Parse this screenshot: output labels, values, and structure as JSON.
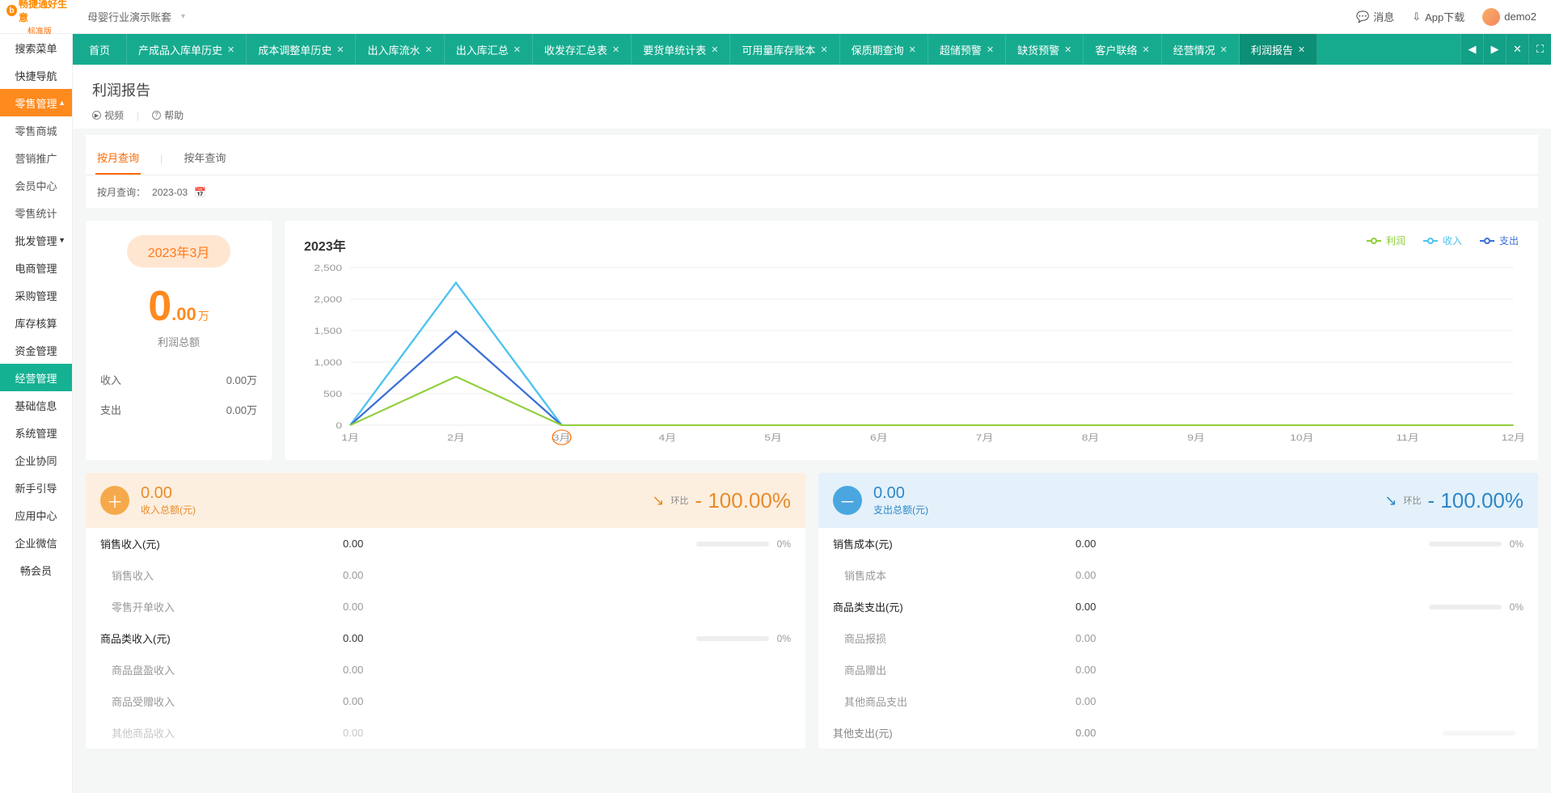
{
  "logo": {
    "main": "畅捷通好生意",
    "sub": "标准版"
  },
  "account_selector": "母婴行业演示账套",
  "topbar": {
    "msg": "消息",
    "app": "App下载",
    "user": "demo2"
  },
  "tabs": [
    {
      "label": "首页",
      "closable": false
    },
    {
      "label": "产成品入库单历史",
      "closable": true
    },
    {
      "label": "成本调整单历史",
      "closable": true
    },
    {
      "label": "出入库流水",
      "closable": true
    },
    {
      "label": "出入库汇总",
      "closable": true
    },
    {
      "label": "收发存汇总表",
      "closable": true
    },
    {
      "label": "要货单统计表",
      "closable": true
    },
    {
      "label": "可用量库存账本",
      "closable": true
    },
    {
      "label": "保质期查询",
      "closable": true
    },
    {
      "label": "超储预警",
      "closable": true
    },
    {
      "label": "缺货预警",
      "closable": true
    },
    {
      "label": "客户联络",
      "closable": true
    },
    {
      "label": "经营情况",
      "closable": true
    },
    {
      "label": "利润报告",
      "closable": true,
      "active": true
    }
  ],
  "sidebar": [
    {
      "label": "搜索菜单"
    },
    {
      "label": "快捷导航"
    },
    {
      "label": "零售管理",
      "style": "active-orange",
      "caret": "▲"
    },
    {
      "label": "零售商城",
      "sub": true
    },
    {
      "label": "营销推广",
      "sub": true
    },
    {
      "label": "会员中心",
      "sub": true
    },
    {
      "label": "零售统计",
      "sub": true
    },
    {
      "label": "批发管理",
      "caret": "▼"
    },
    {
      "label": "电商管理"
    },
    {
      "label": "采购管理"
    },
    {
      "label": "库存核算"
    },
    {
      "label": "资金管理"
    },
    {
      "label": "经营管理",
      "style": "active-teal"
    },
    {
      "label": "基础信息"
    },
    {
      "label": "系统管理"
    },
    {
      "label": "企业协同"
    },
    {
      "label": "新手引导"
    },
    {
      "label": "应用中心"
    },
    {
      "label": "企业微信"
    },
    {
      "label": "畅会员"
    }
  ],
  "page": {
    "title": "利润报告",
    "video": "视频",
    "help": "帮助"
  },
  "query": {
    "tab_month": "按月查询",
    "tab_year": "按年查询",
    "label": "按月查询：",
    "value": "2023-03"
  },
  "summary": {
    "period": "2023年3月",
    "profit_int": "0",
    "profit_dec": ".00",
    "profit_unit": "万",
    "profit_label": "利润总额",
    "income_label": "收入",
    "income_value": "0.00万",
    "expense_label": "支出",
    "expense_value": "0.00万"
  },
  "chart": {
    "title": "2023年",
    "legend": {
      "profit": "利润",
      "income": "收入",
      "expense": "支出"
    },
    "colors": {
      "profit": "#8fce3a",
      "income": "#4fc3f0",
      "expense": "#3b6fd6",
      "grid": "#eeeeee",
      "axis": "#999999"
    },
    "x_labels": [
      "1月",
      "2月",
      "3月",
      "4月",
      "5月",
      "6月",
      "7月",
      "8月",
      "9月",
      "10月",
      "11月",
      "12月"
    ],
    "y_ticks": [
      0,
      500,
      1000,
      1500,
      2000,
      2500
    ],
    "ylim": [
      0,
      2500
    ],
    "current_index": 2,
    "series": {
      "profit": [
        0,
        770,
        0,
        0,
        0,
        0,
        0,
        0,
        0,
        0,
        0,
        0
      ],
      "income": [
        0,
        2260,
        0,
        0,
        0,
        0,
        0,
        0,
        0,
        0,
        0,
        0
      ],
      "expense": [
        0,
        1490,
        0,
        0,
        0,
        0,
        0,
        0,
        0,
        0,
        0,
        0
      ]
    }
  },
  "income_panel": {
    "total_value": "0.00",
    "total_label": "收入总额(元)",
    "hb": "环比",
    "pct": "- 100.00%",
    "rows": [
      {
        "section": true,
        "label": "销售收入(元)",
        "value": "0.00",
        "pct": "0%"
      },
      {
        "label": "销售收入",
        "value": "0.00"
      },
      {
        "label": "零售开单收入",
        "value": "0.00"
      },
      {
        "section": true,
        "label": "商品类收入(元)",
        "value": "0.00",
        "pct": "0%"
      },
      {
        "label": "商品盘盈收入",
        "value": "0.00"
      },
      {
        "label": "商品受赠收入",
        "value": "0.00"
      },
      {
        "label": "其他商品收入",
        "value": "0.00",
        "faded": true
      }
    ]
  },
  "expense_panel": {
    "total_value": "0.00",
    "total_label": "支出总额(元)",
    "hb": "环比",
    "pct": "- 100.00%",
    "rows": [
      {
        "section": true,
        "label": "销售成本(元)",
        "value": "0.00",
        "pct": "0%"
      },
      {
        "label": "销售成本",
        "value": "0.00"
      },
      {
        "section": true,
        "label": "商品类支出(元)",
        "value": "0.00",
        "pct": "0%"
      },
      {
        "label": "商品报损",
        "value": "0.00"
      },
      {
        "label": "商品赠出",
        "value": "0.00"
      },
      {
        "label": "其他商品支出",
        "value": "0.00"
      },
      {
        "section": true,
        "label": "其他支出(元)",
        "value": "0.00",
        "faded": true
      }
    ]
  }
}
